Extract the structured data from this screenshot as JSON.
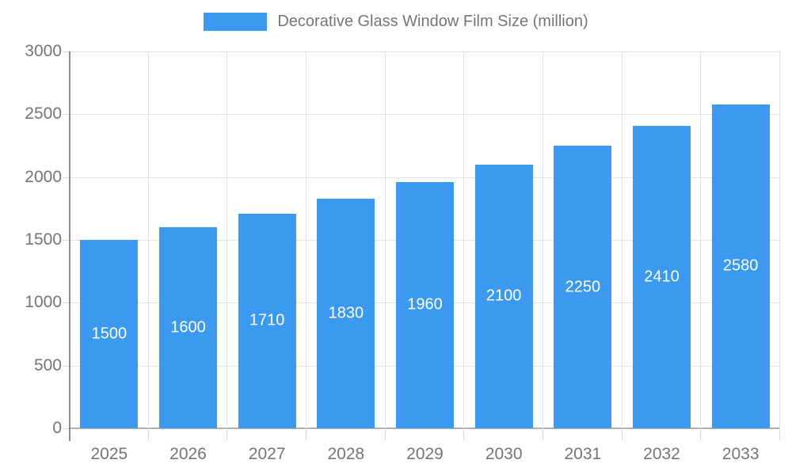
{
  "legend": {
    "label": "Decorative Glass Window Film Size (million)"
  },
  "chart_data": {
    "type": "bar",
    "title": "Decorative Glass Window Film Size (million)",
    "categories": [
      "2025",
      "2026",
      "2027",
      "2028",
      "2029",
      "2030",
      "2031",
      "2032",
      "2033"
    ],
    "series": [
      {
        "name": "Decorative Glass Window Film Size (million)",
        "values": [
          1500,
          1600,
          1710,
          1830,
          1960,
          2100,
          2250,
          2410,
          2580
        ]
      }
    ],
    "xlabel": "",
    "ylabel": "",
    "ylim": [
      0,
      3000
    ],
    "yticks": [
      0,
      500,
      1000,
      1500,
      2000,
      2500,
      3000
    ],
    "grid": true,
    "legend_position": "top-center",
    "value_label_placement": "inside-center",
    "colors": {
      "bar": "#3B99F0",
      "axis_text": "#757575",
      "gridline": "#e2e2e2",
      "axis_line": "#8c8c8c",
      "baseline": "#b0b0b0",
      "value_label": "#ffffff"
    }
  }
}
